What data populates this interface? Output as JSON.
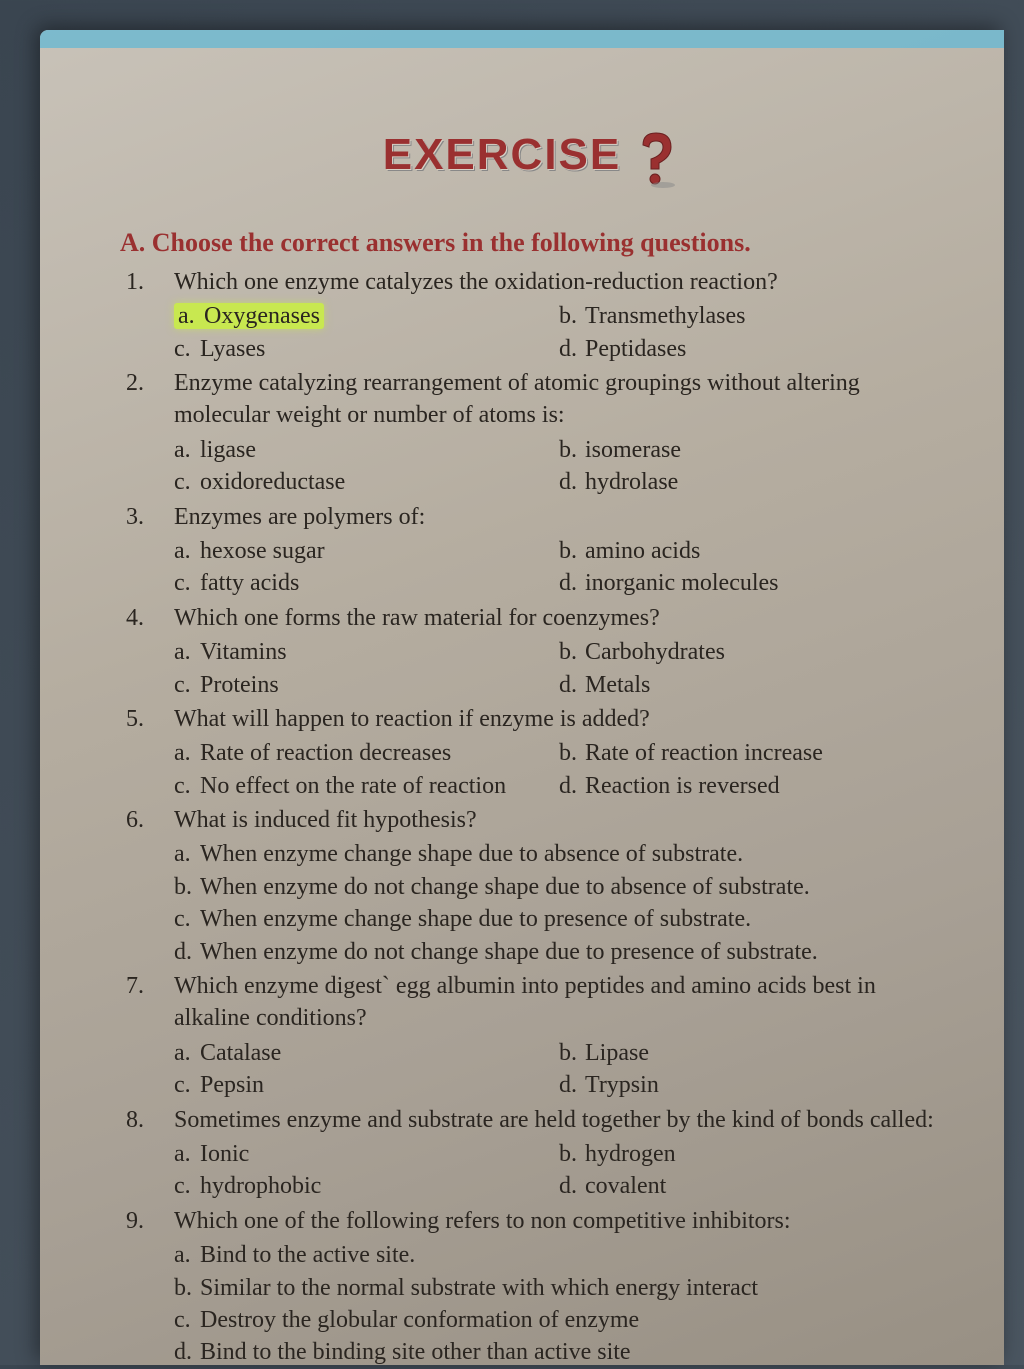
{
  "title": "EXERCISE",
  "section_heading": "A. Choose the correct answers in the following questions.",
  "colors": {
    "heading_red": "#9a3030",
    "highlight": "#c8e850",
    "page_bg": "#b8b0a5",
    "text": "#2a2520",
    "top_stripe": "#6fb8d0"
  },
  "typography": {
    "title_fontsize": 44,
    "section_fontsize": 26,
    "body_fontsize": 24,
    "font_family": "Times New Roman"
  },
  "questions": [
    {
      "num": "1.",
      "text": "Which one enzyme catalyzes the oxidation-reduction reaction?",
      "layout": "two-col",
      "highlight_index": 0,
      "options": [
        {
          "k": "a.",
          "v": "Oxygenases"
        },
        {
          "k": "b.",
          "v": "Transmethylases"
        },
        {
          "k": "c.",
          "v": "Lyases"
        },
        {
          "k": "d.",
          "v": "Peptidases"
        }
      ]
    },
    {
      "num": "2.",
      "text": "Enzyme catalyzing rearrangement of atomic groupings without altering molecular weight or number of atoms is:",
      "layout": "two-col",
      "options": [
        {
          "k": "a.",
          "v": "ligase"
        },
        {
          "k": "b.",
          "v": "isomerase"
        },
        {
          "k": "c.",
          "v": "oxidoreductase"
        },
        {
          "k": "d.",
          "v": "hydrolase"
        }
      ]
    },
    {
      "num": "3.",
      "text": "Enzymes are polymers of:",
      "layout": "two-col",
      "options": [
        {
          "k": "a.",
          "v": "hexose sugar"
        },
        {
          "k": "b.",
          "v": "amino acids"
        },
        {
          "k": "c.",
          "v": "fatty acids"
        },
        {
          "k": "d.",
          "v": "inorganic molecules"
        }
      ]
    },
    {
      "num": "4.",
      "text": "Which one forms the raw material for coenzymes?",
      "layout": "two-col",
      "options": [
        {
          "k": "a.",
          "v": "Vitamins"
        },
        {
          "k": "b.",
          "v": "Carbohydrates"
        },
        {
          "k": "c.",
          "v": "Proteins"
        },
        {
          "k": "d.",
          "v": "Metals"
        }
      ]
    },
    {
      "num": "5.",
      "text": "What will happen to reaction if enzyme is added?",
      "layout": "two-col",
      "options": [
        {
          "k": "a.",
          "v": "Rate of reaction decreases"
        },
        {
          "k": "b.",
          "v": "Rate of reaction increase"
        },
        {
          "k": "c.",
          "v": "No effect on the rate of reaction"
        },
        {
          "k": "d.",
          "v": "Reaction is reversed"
        }
      ]
    },
    {
      "num": "6.",
      "text": "What is induced fit hypothesis?",
      "layout": "one-col",
      "options": [
        {
          "k": "a.",
          "v": "When enzyme change shape due to absence of substrate."
        },
        {
          "k": "b.",
          "v": "When enzyme do not change shape due to absence of substrate."
        },
        {
          "k": "c.",
          "v": "When enzyme change shape due to presence of substrate."
        },
        {
          "k": "d.",
          "v": "When enzyme do not change shape due to presence of substrate."
        }
      ]
    },
    {
      "num": "7.",
      "text": "Which enzyme digest` egg albumin into peptides and amino acids best in alkaline conditions?",
      "layout": "two-col",
      "options": [
        {
          "k": "a.",
          "v": "Catalase"
        },
        {
          "k": "b.",
          "v": "Lipase"
        },
        {
          "k": "c.",
          "v": "Pepsin"
        },
        {
          "k": "d.",
          "v": "Trypsin"
        }
      ]
    },
    {
      "num": "8.",
      "text": "Sometimes enzyme and substrate are held together by the kind of bonds called:",
      "layout": "two-col",
      "options": [
        {
          "k": "a.",
          "v": "Ionic"
        },
        {
          "k": "b.",
          "v": "hydrogen"
        },
        {
          "k": "c.",
          "v": "hydrophobic"
        },
        {
          "k": "d.",
          "v": "covalent"
        }
      ]
    },
    {
      "num": "9.",
      "text": "Which one of the following refers to non competitive inhibitors:",
      "layout": "one-col",
      "options": [
        {
          "k": "a.",
          "v": "Bind to the active site."
        },
        {
          "k": "b.",
          "v": "Similar to the normal substrate with which energy interact"
        },
        {
          "k": "c.",
          "v": "Destroy the globular conformation of enzyme"
        },
        {
          "k": "d.",
          "v": "Bind to the binding site other than active site"
        }
      ]
    }
  ]
}
